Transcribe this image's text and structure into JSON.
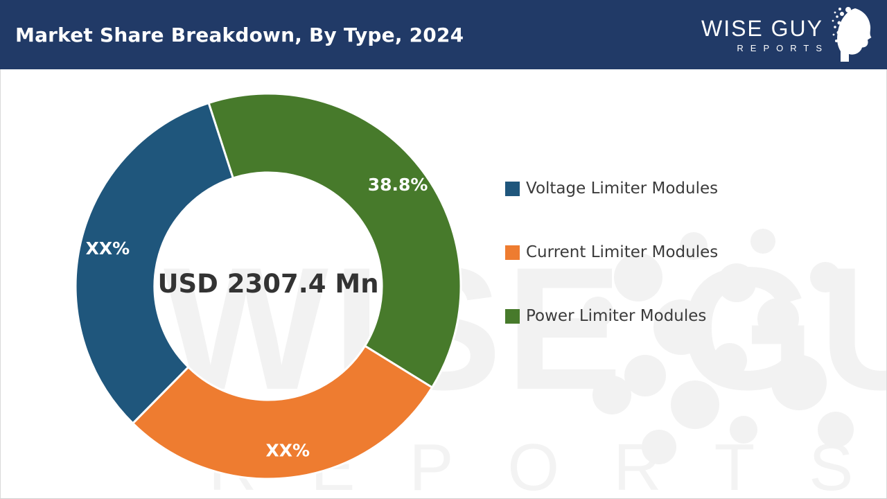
{
  "header": {
    "title": "Market Share Breakdown, By Type, 2024",
    "logo": {
      "line1": "WISE GUY",
      "line2": "REPORTS"
    }
  },
  "watermark": {
    "line1": "WISE GUY",
    "line2": "REPORTS"
  },
  "chart_data": {
    "type": "pie",
    "subtype": "donut",
    "title": "Market Share Breakdown, By Type, 2024",
    "center_label": "USD 2307.4 Mn",
    "start_angle_deg": -18,
    "segments": [
      {
        "name": "Power Limiter Modules",
        "display_label": "38.8%",
        "value_pct": 38.8,
        "color": "#477a2b"
      },
      {
        "name": "Current Limiter Modules",
        "display_label": "XX%",
        "value_pct": 28.6,
        "color": "#ee7c30"
      },
      {
        "name": "Voltage Limiter Modules",
        "display_label": "XX%",
        "value_pct": 32.6,
        "color": "#1f567c"
      }
    ],
    "legend": [
      {
        "label": "Voltage Limiter Modules",
        "color": "#1f567c"
      },
      {
        "label": "Current Limiter Modules",
        "color": "#ee7c30"
      },
      {
        "label": "Power Limiter Modules",
        "color": "#477a2b"
      }
    ],
    "legend_position": "right"
  },
  "colors": {
    "header_bg": "#213a67",
    "center_text": "#333333",
    "legend_text": "#3b3b3b",
    "slice_label_text": "#ffffff"
  }
}
